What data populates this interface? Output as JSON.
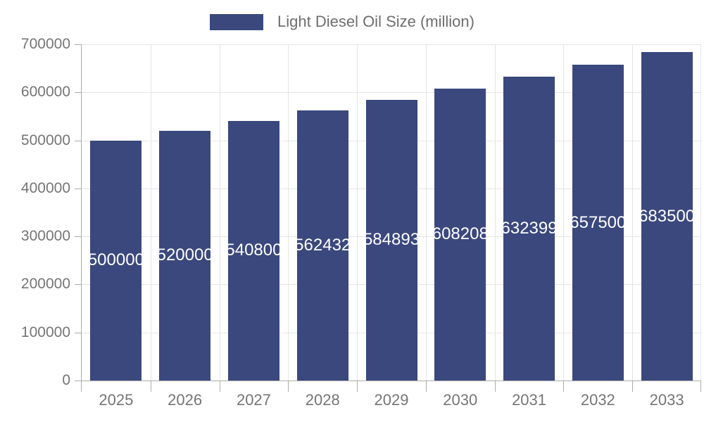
{
  "legend": {
    "label": "Light Diesel Oil Size (million)",
    "swatch_color": "#3a487d"
  },
  "chart_data": {
    "type": "bar",
    "title": "Light Diesel Oil Size (million)",
    "categories": [
      "2025",
      "2026",
      "2027",
      "2028",
      "2029",
      "2030",
      "2031",
      "2032",
      "2033"
    ],
    "values": [
      500000,
      520000,
      540800,
      562432,
      584893,
      608208,
      632399,
      657500,
      683500
    ],
    "bar_labels": [
      "500000",
      "520000",
      "540800",
      "562432",
      "584893",
      "608208",
      "632399",
      "657500",
      "683500"
    ],
    "xlabel": "",
    "ylabel": "",
    "ylim": [
      0,
      700000
    ],
    "y_tick_step": 100000,
    "y_tick_labels": [
      "0",
      "100000",
      "200000",
      "300000",
      "400000",
      "500000",
      "600000",
      "700000"
    ],
    "grid": true,
    "legend_position": "top",
    "bar_color": "#3a487d",
    "bar_label_color": "#ffffff"
  },
  "colors": {
    "background": "#ffffff",
    "grid_line": "#e4e4e4",
    "axis_line": "#ababab",
    "tick_text": "#757575",
    "legend_text": "#6e6e6e"
  }
}
